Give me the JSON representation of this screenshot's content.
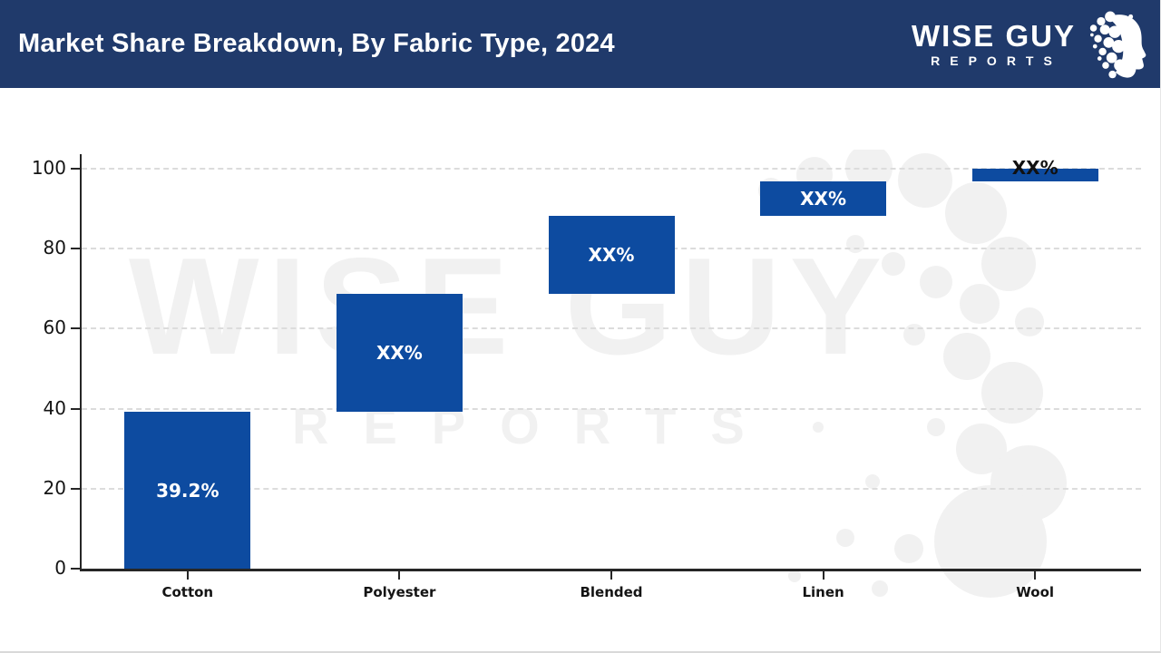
{
  "header": {
    "title": "Market Share Breakdown, By Fabric Type, 2024",
    "bg_color": "#203a6b",
    "logo": {
      "line1": "WISE GUY",
      "line2": "REPORTS"
    }
  },
  "watermark": {
    "line1": "WISE GUY",
    "line2": "REPORTS"
  },
  "chart_data": {
    "type": "bar",
    "subtype": "waterfall",
    "title": "Market Share Breakdown, By Fabric Type, 2024",
    "categories": [
      "Cotton",
      "Polyester",
      "Blended",
      "Linen",
      "Wool"
    ],
    "starts": [
      0,
      39.2,
      68.8,
      88.3,
      96.8
    ],
    "values": [
      39.2,
      29.6,
      19.5,
      8.5,
      3.2
    ],
    "bar_labels": [
      "39.2%",
      "XX%",
      "XX%",
      "XX%",
      "XX%"
    ],
    "xlabel": "",
    "ylabel": "",
    "ylim": [
      0,
      100
    ],
    "yticks": [
      0,
      20,
      40,
      60,
      80,
      100
    ],
    "grid": "horizontal-dashed",
    "legend": "none",
    "bar_color": "#0d4ba0",
    "label_color_inside": "#ffffff",
    "label_color_outside": "#111111"
  }
}
